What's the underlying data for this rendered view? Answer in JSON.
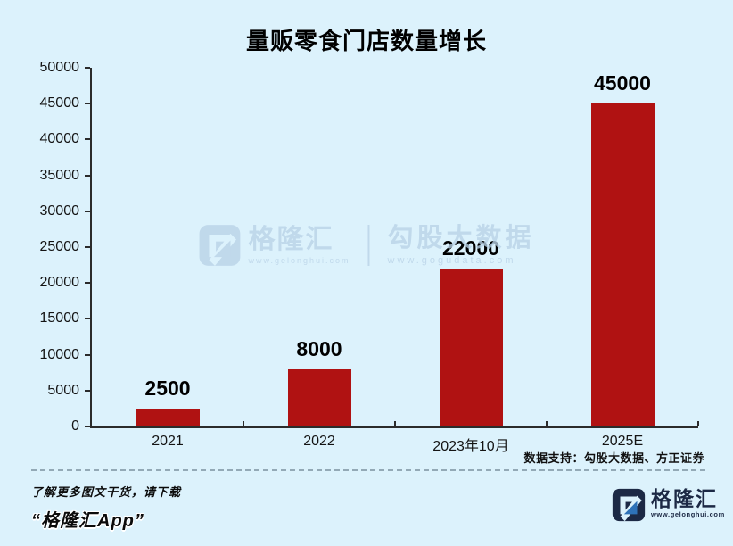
{
  "title": "量贩零食门店数量增长",
  "chart_data": {
    "type": "bar",
    "title": "量贩零食门店数量增长",
    "categories": [
      "2021",
      "2022",
      "2023年10月",
      "2025E"
    ],
    "values": [
      2500,
      8000,
      22000,
      45000
    ],
    "xlabel": "",
    "ylabel": "",
    "ylim": [
      0,
      50000
    ],
    "ytick_step": 5000,
    "grid": false,
    "legend": false,
    "bar_color": "#b01212",
    "axis_color": "#2b2b2b",
    "value_labels": [
      "2500",
      "8000",
      "22000",
      "45000"
    ]
  },
  "watermark": {
    "brand": "格隆汇",
    "brand_url": "www.gelonghui.com",
    "partner": "勾股大数据",
    "partner_url": "www.gogudata.com"
  },
  "footer": {
    "data_support": "数据支持：勾股大数据、方正证券",
    "promo_line1": "了解更多图文干货，请下载",
    "promo_line2": "“格隆汇App”",
    "logo_text": "格隆汇",
    "logo_url": "www.gelonghui.com"
  },
  "colors": {
    "background": "#dcf2fc",
    "bar": "#b01212",
    "logo_navy": "#1c2945",
    "logo_blue": "#2e72b8",
    "watermark_blue": "#b9d2e7"
  }
}
